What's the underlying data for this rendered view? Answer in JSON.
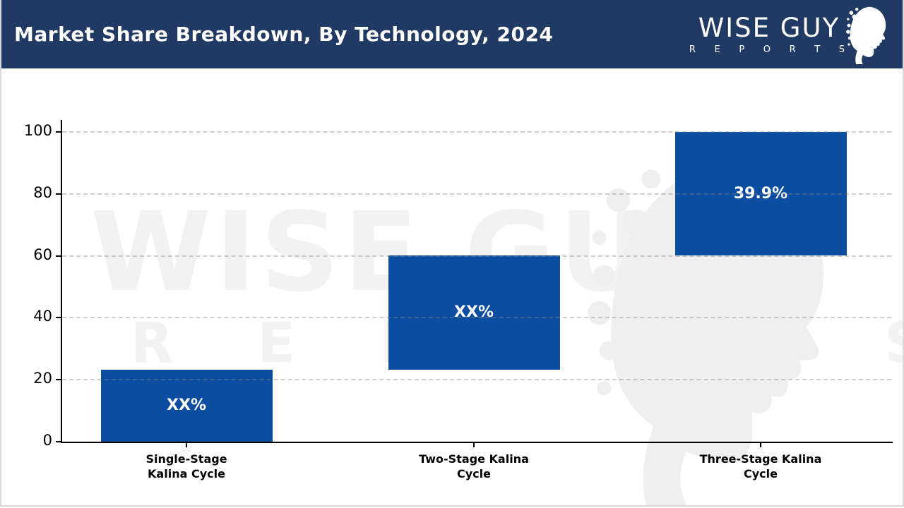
{
  "header": {
    "title": "Market Share Breakdown, By Technology, 2024",
    "logo": {
      "primary": "WISE GUY",
      "secondary": "REPORTS"
    }
  },
  "watermark": {
    "primary": "WISE GUY",
    "secondary": "REPORTS"
  },
  "icons": {
    "logo_face": "dotted-face-profile-icon",
    "watermark_face": "dotted-face-profile-icon"
  },
  "colors": {
    "header_bg": "#213a63",
    "title_text": "#ffffff",
    "bar": "#0b4da1",
    "bar_label": "#ffffff",
    "axis": "#000000",
    "grid": "#d9d9d9",
    "watermark": "#f2f2f2",
    "frame_border": "#d9d9d9"
  },
  "chart_data": {
    "type": "bar",
    "subtype": "waterfall",
    "title": "Market Share Breakdown, By Technology, 2024",
    "categories": [
      [
        "Single-Stage",
        "Kalina Cycle"
      ],
      [
        "Two-Stage Kalina",
        "Cycle"
      ],
      [
        "Three-Stage Kalina",
        "Cycle"
      ]
    ],
    "series": [
      {
        "name": "Market Share (%)",
        "segments": [
          {
            "category": "Single-Stage Kalina Cycle",
            "start": 0,
            "end": 23.3,
            "value_label": "XX%"
          },
          {
            "category": "Two-Stage Kalina Cycle",
            "start": 23.3,
            "end": 60.1,
            "value_label": "XX%"
          },
          {
            "category": "Three-Stage Kalina Cycle",
            "start": 60.1,
            "end": 100,
            "value_label": "39.9%"
          }
        ]
      }
    ],
    "xlabel": "",
    "ylabel": "",
    "ylim": [
      0,
      100
    ],
    "yticks": [
      0,
      20,
      40,
      60,
      80,
      100
    ],
    "grid": {
      "horizontal": true,
      "style": "dashed",
      "drawn_over_bars": true
    },
    "legend": null
  }
}
